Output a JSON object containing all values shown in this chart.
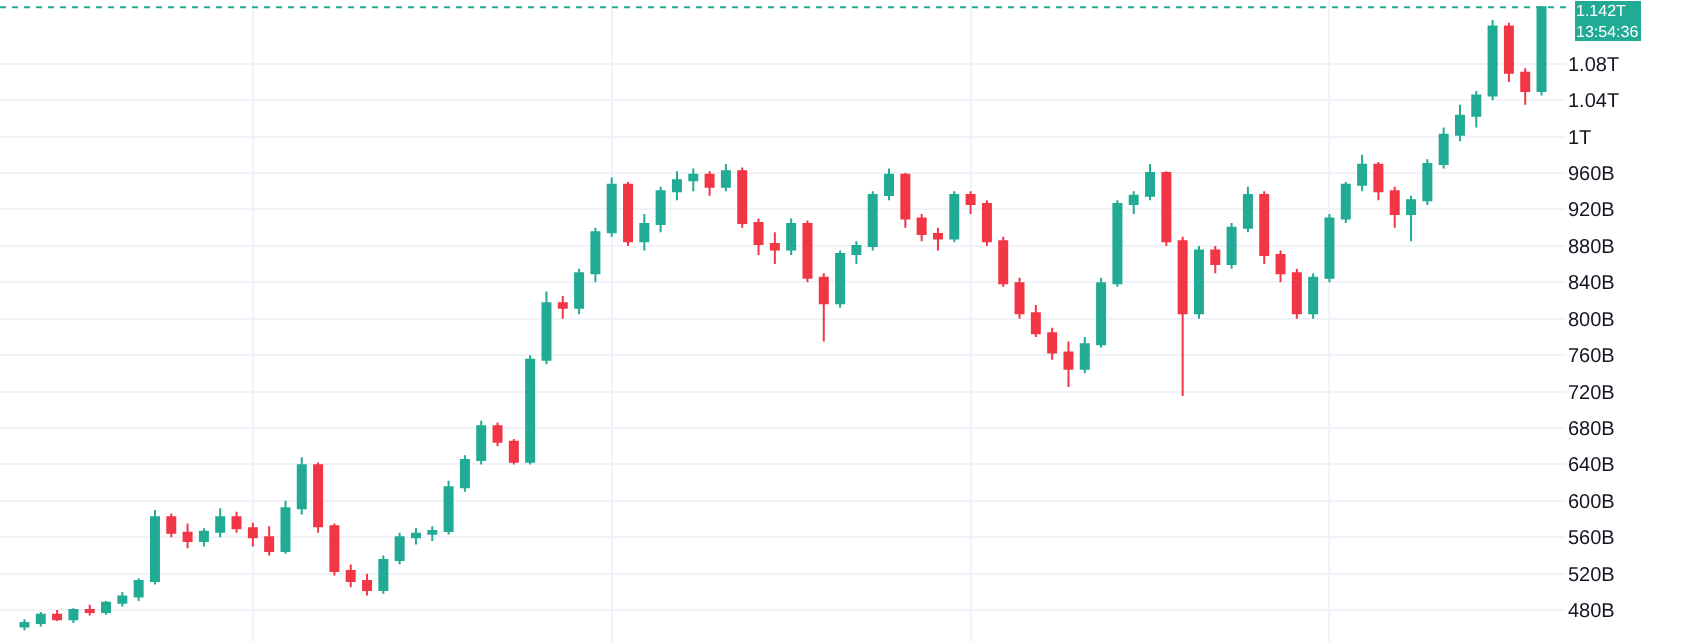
{
  "chart_data": {
    "type": "candlestick",
    "categories": [
      null,
      null,
      null,
      null,
      null,
      null,
      null,
      null,
      null,
      null,
      null,
      null,
      null,
      null,
      null,
      null,
      null,
      null,
      null,
      null,
      null,
      null,
      null,
      null,
      null,
      null,
      null,
      null,
      null,
      null,
      null,
      null,
      null,
      null,
      null,
      null,
      null,
      null,
      null,
      null,
      null,
      null,
      null,
      null,
      null,
      null,
      null,
      null,
      null,
      null,
      null,
      null,
      null,
      null,
      null,
      null,
      null,
      null,
      null,
      null,
      null,
      null,
      null,
      null,
      null,
      null,
      null,
      null,
      null,
      null,
      null,
      null,
      null,
      null,
      null,
      null,
      null,
      null,
      null,
      null,
      null,
      null,
      null,
      null,
      null,
      null,
      null,
      null,
      null,
      null,
      null,
      null,
      null,
      null
    ],
    "ohlc": [
      [
        462000000000.0,
        470000000000.0,
        458000000000.0,
        466000000000.0
      ],
      [
        466000000000.0,
        478000000000.0,
        462000000000.0,
        475000000000.0
      ],
      [
        475000000000.0,
        480000000000.0,
        468000000000.0,
        470000000000.0
      ],
      [
        470000000000.0,
        482000000000.0,
        466000000000.0,
        480000000000.0
      ],
      [
        480000000000.0,
        486000000000.0,
        474000000000.0,
        478000000000.0
      ],
      [
        478000000000.0,
        490000000000.0,
        475000000000.0,
        488000000000.0
      ],
      [
        488000000000.0,
        500000000000.0,
        484000000000.0,
        495000000000.0
      ],
      [
        495000000000.0,
        515000000000.0,
        490000000000.0,
        512000000000.0
      ],
      [
        512000000000.0,
        590000000000.0,
        508000000000.0,
        582000000000.0
      ],
      [
        582000000000.0,
        586000000000.0,
        560000000000.0,
        565000000000.0
      ],
      [
        565000000000.0,
        575000000000.0,
        548000000000.0,
        556000000000.0
      ],
      [
        556000000000.0,
        570000000000.0,
        550000000000.0,
        566000000000.0
      ],
      [
        566000000000.0,
        592000000000.0,
        560000000000.0,
        582000000000.0
      ],
      [
        582000000000.0,
        588000000000.0,
        565000000000.0,
        570000000000.0
      ],
      [
        570000000000.0,
        576000000000.0,
        550000000000.0,
        560000000000.0
      ],
      [
        560000000000.0,
        572000000000.0,
        540000000000.0,
        545000000000.0
      ],
      [
        545000000000.0,
        600000000000.0,
        542000000000.0,
        592000000000.0
      ],
      [
        592000000000.0,
        648000000000.0,
        585000000000.0,
        639000000000.0
      ],
      [
        639000000000.0,
        642000000000.0,
        565000000000.0,
        572000000000.0
      ],
      [
        572000000000.0,
        575000000000.0,
        518000000000.0,
        523000000000.0
      ],
      [
        523000000000.0,
        530000000000.0,
        505000000000.0,
        512000000000.0
      ],
      [
        512000000000.0,
        520000000000.0,
        496000000000.0,
        502000000000.0
      ],
      [
        502000000000.0,
        540000000000.0,
        498000000000.0,
        535000000000.0
      ],
      [
        535000000000.0,
        565000000000.0,
        530000000000.0,
        560000000000.0
      ],
      [
        560000000000.0,
        570000000000.0,
        552000000000.0,
        564000000000.0
      ],
      [
        564000000000.0,
        572000000000.0,
        556000000000.0,
        567000000000.0
      ],
      [
        567000000000.0,
        622000000000.0,
        563000000000.0,
        615000000000.0
      ],
      [
        615000000000.0,
        650000000000.0,
        610000000000.0,
        645000000000.0
      ],
      [
        645000000000.0,
        688000000000.0,
        640000000000.0,
        682000000000.0
      ],
      [
        682000000000.0,
        686000000000.0,
        660000000000.0,
        665000000000.0
      ],
      [
        665000000000.0,
        668000000000.0,
        640000000000.0,
        643000000000.0
      ],
      [
        643000000000.0,
        760000000000.0,
        640000000000.0,
        755000000000.0
      ],
      [
        755000000000.0,
        830000000000.0,
        750000000000.0,
        817000000000.0
      ],
      [
        817000000000.0,
        825000000000.0,
        800000000000.0,
        812000000000.0
      ],
      [
        812000000000.0,
        855000000000.0,
        805000000000.0,
        850000000000.0
      ],
      [
        850000000000.0,
        900000000000.0,
        840000000000.0,
        895000000000.0
      ],
      [
        895000000000.0,
        955000000000.0,
        890000000000.0,
        947000000000.0
      ],
      [
        947000000000.0,
        950000000000.0,
        880000000000.0,
        885000000000.0
      ],
      [
        885000000000.0,
        915000000000.0,
        875000000000.0,
        904000000000.0
      ],
      [
        904000000000.0,
        945000000000.0,
        895000000000.0,
        940000000000.0
      ],
      [
        940000000000.0,
        962000000000.0,
        930000000000.0,
        952000000000.0
      ],
      [
        952000000000.0,
        965000000000.0,
        940000000000.0,
        958000000000.0
      ],
      [
        958000000000.0,
        962000000000.0,
        935000000000.0,
        945000000000.0
      ],
      [
        945000000000.0,
        970000000000.0,
        940000000000.0,
        962000000000.0
      ],
      [
        962000000000.0,
        966000000000.0,
        900000000000.0,
        905000000000.0
      ],
      [
        905000000000.0,
        910000000000.0,
        870000000000.0,
        882000000000.0
      ],
      [
        882000000000.0,
        895000000000.0,
        860000000000.0,
        876000000000.0
      ],
      [
        876000000000.0,
        910000000000.0,
        870000000000.0,
        904000000000.0
      ],
      [
        904000000000.0,
        908000000000.0,
        840000000000.0,
        845000000000.0
      ],
      [
        845000000000.0,
        850000000000.0,
        775000000000.0,
        817000000000.0
      ],
      [
        817000000000.0,
        875000000000.0,
        812000000000.0,
        871000000000.0
      ],
      [
        871000000000.0,
        885000000000.0,
        860000000000.0,
        880000000000.0
      ],
      [
        880000000000.0,
        940000000000.0,
        875000000000.0,
        936000000000.0
      ],
      [
        936000000000.0,
        965000000000.0,
        930000000000.0,
        958000000000.0
      ],
      [
        958000000000.0,
        960000000000.0,
        900000000000.0,
        910000000000.0
      ],
      [
        910000000000.0,
        915000000000.0,
        885000000000.0,
        893000000000.0
      ],
      [
        893000000000.0,
        900000000000.0,
        875000000000.0,
        888000000000.0
      ],
      [
        888000000000.0,
        940000000000.0,
        884000000000.0,
        936000000000.0
      ],
      [
        936000000000.0,
        940000000000.0,
        915000000000.0,
        926000000000.0
      ],
      [
        926000000000.0,
        930000000000.0,
        880000000000.0,
        885000000000.0
      ],
      [
        885000000000.0,
        890000000000.0,
        835000000000.0,
        839000000000.0
      ],
      [
        839000000000.0,
        845000000000.0,
        800000000000.0,
        806000000000.0
      ],
      [
        806000000000.0,
        815000000000.0,
        780000000000.0,
        784000000000.0
      ],
      [
        784000000000.0,
        790000000000.0,
        755000000000.0,
        763000000000.0
      ],
      [
        763000000000.0,
        775000000000.0,
        725000000000.0,
        745000000000.0
      ],
      [
        745000000000.0,
        780000000000.0,
        740000000000.0,
        772000000000.0
      ],
      [
        772000000000.0,
        845000000000.0,
        768000000000.0,
        839000000000.0
      ],
      [
        839000000000.0,
        930000000000.0,
        835000000000.0,
        926000000000.0
      ],
      [
        926000000000.0,
        940000000000.0,
        915000000000.0,
        935000000000.0
      ],
      [
        935000000000.0,
        970000000000.0,
        930000000000.0,
        960000000000.0
      ],
      [
        960000000000.0,
        962000000000.0,
        880000000000.0,
        885000000000.0
      ],
      [
        885000000000.0,
        890000000000.0,
        715000000000.0,
        806000000000.0
      ],
      [
        806000000000.0,
        880000000000.0,
        800000000000.0,
        875000000000.0
      ],
      [
        875000000000.0,
        880000000000.0,
        850000000000.0,
        860000000000.0
      ],
      [
        860000000000.0,
        905000000000.0,
        855000000000.0,
        900000000000.0
      ],
      [
        900000000000.0,
        945000000000.0,
        895000000000.0,
        936000000000.0
      ],
      [
        936000000000.0,
        940000000000.0,
        860000000000.0,
        870000000000.0
      ],
      [
        870000000000.0,
        875000000000.0,
        840000000000.0,
        850000000000.0
      ],
      [
        850000000000.0,
        855000000000.0,
        800000000000.0,
        806000000000.0
      ],
      [
        806000000000.0,
        850000000000.0,
        800000000000.0,
        845000000000.0
      ],
      [
        845000000000.0,
        915000000000.0,
        840000000000.0,
        910000000000.0
      ],
      [
        910000000000.0,
        950000000000.0,
        905000000000.0,
        947000000000.0
      ],
      [
        947000000000.0,
        980000000000.0,
        940000000000.0,
        969000000000.0
      ],
      [
        969000000000.0,
        972000000000.0,
        930000000000.0,
        940000000000.0
      ],
      [
        940000000000.0,
        945000000000.0,
        900000000000.0,
        915000000000.0
      ],
      [
        915000000000.0,
        935000000000.0,
        885000000000.0,
        930000000000.0
      ],
      [
        930000000000.0,
        975000000000.0,
        925000000000.0,
        970000000000.0
      ],
      [
        970000000000.0,
        1010000000000.0,
        965000000000.0,
        1002000000000.0
      ],
      [
        1002000000000.0,
        1035000000000.0,
        995000000000.0,
        1023000000000.0
      ],
      [
        1023000000000.0,
        1050000000000.0,
        1010000000000.0,
        1045000000000.0
      ],
      [
        1045000000000.0,
        1128000000000.0,
        1040000000000.0,
        1121000000000.0
      ],
      [
        1121000000000.0,
        1125000000000.0,
        1060000000000.0,
        1070000000000.0
      ],
      [
        1070000000000.0,
        1075000000000.0,
        1035000000000.0,
        1050000000000.0
      ],
      [
        1050000000000.0,
        1142000000000.0,
        1045000000000.0,
        1142000000000.0
      ]
    ],
    "colors": [
      "#22ab94",
      "#22ab94",
      "#f23645",
      "#22ab94",
      "#f23645",
      "#22ab94",
      "#22ab94",
      "#22ab94",
      "#22ab94",
      "#f23645",
      "#f23645",
      "#22ab94",
      "#22ab94",
      "#f23645",
      "#f23645",
      "#f23645",
      "#22ab94",
      "#22ab94",
      "#f23645",
      "#f23645",
      "#f23645",
      "#f23645",
      "#22ab94",
      "#22ab94",
      "#22ab94",
      "#22ab94",
      "#22ab94",
      "#22ab94",
      "#22ab94",
      "#f23645",
      "#f23645",
      "#22ab94",
      "#22ab94",
      "#f23645",
      "#22ab94",
      "#22ab94",
      "#22ab94",
      "#f23645",
      "#22ab94",
      "#22ab94",
      "#22ab94",
      "#22ab94",
      "#f23645",
      "#22ab94",
      "#f23645",
      "#f23645",
      "#f23645",
      "#22ab94",
      "#f23645",
      "#f23645",
      "#22ab94",
      "#22ab94",
      "#22ab94",
      "#22ab94",
      "#f23645",
      "#f23645",
      "#f23645",
      "#22ab94",
      "#f23645",
      "#f23645",
      "#f23645",
      "#f23645",
      "#f23645",
      "#f23645",
      "#f23645",
      "#22ab94",
      "#22ab94",
      "#22ab94",
      "#22ab94",
      "#22ab94",
      "#f23645",
      "#f23645",
      "#22ab94",
      "#f23645",
      "#22ab94",
      "#22ab94",
      "#f23645",
      "#f23645",
      "#f23645",
      "#22ab94",
      "#22ab94",
      "#22ab94",
      "#22ab94",
      "#f23645",
      "#f23645",
      "#22ab94",
      "#22ab94",
      "#22ab94",
      "#22ab94",
      "#22ab94",
      "#22ab94",
      "#f23645",
      "#f23645",
      "#22ab94"
    ],
    "ylim": [
      445000000000.0,
      1150000000000.0
    ],
    "yticks": [
      {
        "value": 480000000000.0,
        "label": "480B"
      },
      {
        "value": 520000000000.0,
        "label": "520B"
      },
      {
        "value": 560000000000.0,
        "label": "560B"
      },
      {
        "value": 600000000000.0,
        "label": "600B"
      },
      {
        "value": 640000000000.0,
        "label": "640B"
      },
      {
        "value": 680000000000.0,
        "label": "680B"
      },
      {
        "value": 720000000000.0,
        "label": "720B"
      },
      {
        "value": 760000000000.0,
        "label": "760B"
      },
      {
        "value": 800000000000.0,
        "label": "800B"
      },
      {
        "value": 840000000000.0,
        "label": "840B"
      },
      {
        "value": 880000000000.0,
        "label": "880B"
      },
      {
        "value": 920000000000.0,
        "label": "920B"
      },
      {
        "value": 960000000000.0,
        "label": "960B"
      },
      {
        "value": 1000000000000.0,
        "label": "1T"
      },
      {
        "value": 1040000000000.0,
        "label": "1.04T"
      },
      {
        "value": 1080000000000.0,
        "label": "1.08T"
      }
    ],
    "ref_lines": [
      {
        "axis": "y",
        "value": 1142000000000.0,
        "label": "1.142T",
        "color": "#22ab94",
        "line_style": "dotted"
      }
    ],
    "annotations": [
      "13:54:36"
    ],
    "grid": true
  }
}
